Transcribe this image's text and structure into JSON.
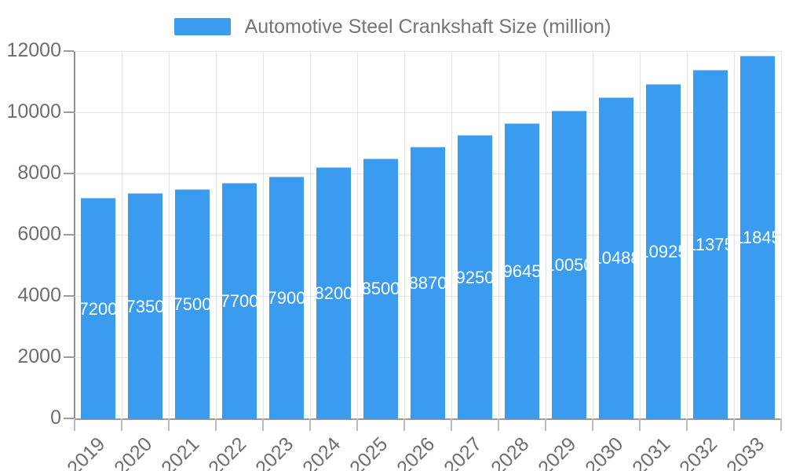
{
  "legend": {
    "swatch_color": "#3b9bee",
    "label": "Automotive Steel Crankshaft Size (million)"
  },
  "chart_data": {
    "type": "bar",
    "title": "Automotive Steel Crankshaft Size (million)",
    "categories": [
      "2019",
      "2020",
      "2021",
      "2022",
      "2023",
      "2024",
      "2025",
      "2026",
      "2027",
      "2028",
      "2029",
      "2030",
      "2031",
      "2032",
      "2033"
    ],
    "values": [
      7200,
      7350,
      7500,
      7700,
      7900,
      8200,
      8500,
      8870,
      9250,
      9645,
      10050,
      10488,
      10925,
      11375,
      11845
    ],
    "series_name": "Automotive Steel Crankshaft Size (million)",
    "xlabel": "",
    "ylabel": "",
    "ylim": [
      0,
      12000
    ],
    "ytick_step": 2000,
    "ytick_labels": [
      "0",
      "2000",
      "4000",
      "6000",
      "8000",
      "10000",
      "12000"
    ],
    "grid": true,
    "legend_position": "top-center",
    "bar_color": "#3b9bee",
    "bar_label_color": "#ffffff",
    "axis_text_color": "#6e6e6e",
    "grid_color": "#e3e3e3",
    "axis_line_color": "#9b9b9b",
    "x_label_rotation_deg": 45
  }
}
